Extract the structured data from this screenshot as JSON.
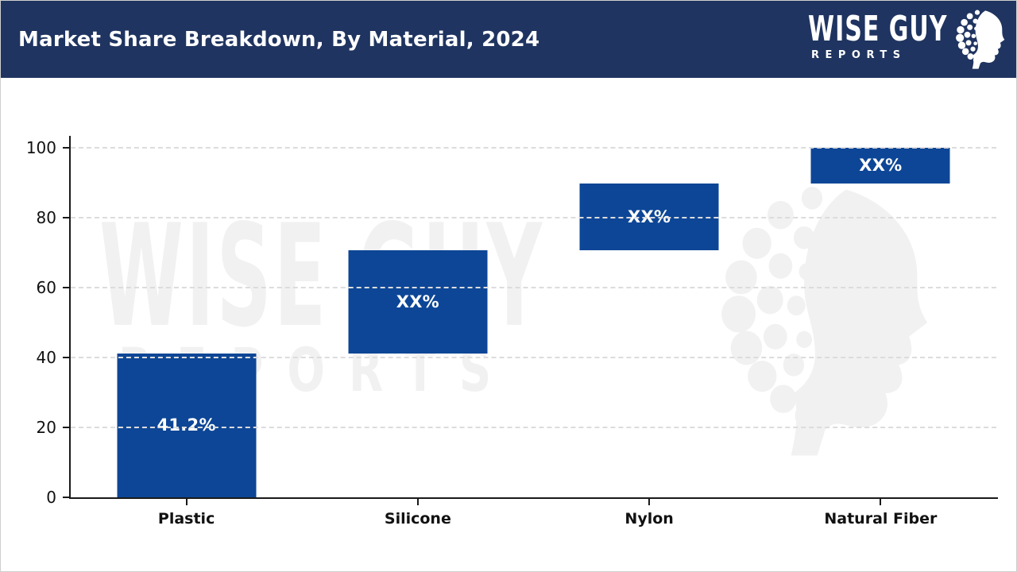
{
  "header": {
    "title": "Market Share Breakdown, By Material, 2024",
    "logo": {
      "name": "WISE GUY",
      "sub": "REPORTS"
    }
  },
  "watermark": {
    "name": "WISE GUY",
    "sub": "REPORTS"
  },
  "chart_data": {
    "type": "bar",
    "subtype": "waterfall",
    "title": "Market Share Breakdown, By Material, 2024",
    "categories": [
      "Plastic",
      "Silicone",
      "Nylon",
      "Natural Fiber"
    ],
    "segments": [
      {
        "category": "Plastic",
        "start": 0,
        "end": 41.2,
        "label": "41.2%"
      },
      {
        "category": "Silicone",
        "start": 41.2,
        "end": 70.6,
        "label": "XX%"
      },
      {
        "category": "Nylon",
        "start": 70.6,
        "end": 89.8,
        "label": "XX%"
      },
      {
        "category": "Natural Fiber",
        "start": 89.8,
        "end": 100,
        "label": "XX%"
      }
    ],
    "yticks": [
      0,
      20,
      40,
      60,
      80,
      100
    ],
    "ylim": [
      0,
      100
    ],
    "xlabel": "",
    "ylabel": "",
    "grid": "dashed-horizontal",
    "legend": "none",
    "bar_color": "#0d4696",
    "bar_label_color": "#ffffff"
  },
  "colors": {
    "header_bg": "#1f3460",
    "grid": "#dcdcdc",
    "watermark": "#f1f1f2",
    "page_border": "#cfcfcf"
  }
}
